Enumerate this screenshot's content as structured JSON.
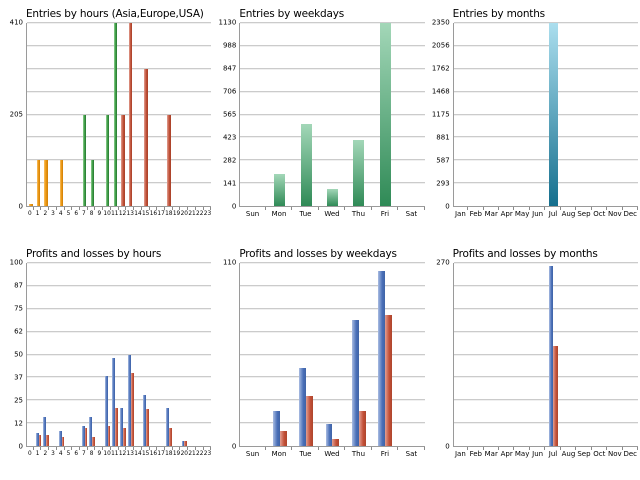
{
  "palette": {
    "asia_orange": "#ED9A14",
    "europe_green": "#3A9A44",
    "usa_red": "#C05138",
    "weekday_green": "#2F8A56",
    "month_teal": "#156F8E",
    "profit_blue": "#4A70B8",
    "loss_red": "#C35038"
  },
  "chart_data": [
    {
      "type": "bar",
      "title": "Entries by hours (Asia,Europe,USA)",
      "categories": [
        "0",
        "1",
        "2",
        "3",
        "4",
        "5",
        "6",
        "7",
        "8",
        "9",
        "10",
        "11",
        "12",
        "13",
        "14",
        "15",
        "16",
        "17",
        "18",
        "19",
        "20",
        "21",
        "22",
        "23"
      ],
      "values": [
        5,
        102,
        102,
        0,
        102,
        0,
        0,
        205,
        102,
        0,
        205,
        410,
        205,
        410,
        0,
        307,
        0,
        0,
        205,
        0,
        0,
        0,
        0,
        0
      ],
      "bar_colors": [
        "orange",
        "orange",
        "orange",
        "orange",
        "orange",
        "orange",
        "orange",
        "green",
        "green",
        "green",
        "green",
        "green",
        "red",
        "red",
        "red",
        "red",
        "red",
        "red",
        "red",
        "red",
        "red",
        "red",
        "red",
        "red"
      ],
      "ymax": 410,
      "ytick_labels": [
        "0",
        "",
        "",
        "",
        "205",
        "",
        "",
        "",
        "410"
      ],
      "grid": true,
      "legend": "none"
    },
    {
      "type": "bar",
      "title": "Entries by weekdays",
      "categories": [
        "Sun",
        "Mon",
        "Tue",
        "Wed",
        "Thu",
        "Fri",
        "Sat"
      ],
      "values": [
        0,
        200,
        505,
        105,
        410,
        1130,
        0
      ],
      "bar_colors": [
        "wgreen",
        "wgreen",
        "wgreen",
        "wgreen",
        "wgreen",
        "wgreen",
        "wgreen"
      ],
      "ymax": 1130,
      "ytick_labels": [
        "0",
        "141",
        "282",
        "423",
        "565",
        "706",
        "847",
        "988",
        "1130"
      ],
      "grid": true,
      "legend": "none"
    },
    {
      "type": "bar",
      "title": "Entries by months",
      "categories": [
        "Jan",
        "Feb",
        "Mar",
        "Apr",
        "May",
        "Jun",
        "Jul",
        "Aug",
        "Sep",
        "Oct",
        "Nov",
        "Dec"
      ],
      "values": [
        0,
        0,
        0,
        0,
        0,
        0,
        2350,
        0,
        0,
        0,
        0,
        0
      ],
      "bar_colors": [
        "teal",
        "teal",
        "teal",
        "teal",
        "teal",
        "teal",
        "teal",
        "teal",
        "teal",
        "teal",
        "teal",
        "teal"
      ],
      "ymax": 2350,
      "ytick_labels": [
        "0",
        "293",
        "587",
        "881",
        "1175",
        "1468",
        "1762",
        "2056",
        "2350"
      ],
      "grid": true,
      "legend": "none"
    },
    {
      "type": "grouped_bar",
      "title": "Profits and losses by hours",
      "categories": [
        "0",
        "1",
        "2",
        "3",
        "4",
        "5",
        "6",
        "7",
        "8",
        "9",
        "10",
        "11",
        "12",
        "13",
        "14",
        "15",
        "16",
        "17",
        "18",
        "19",
        "20",
        "21",
        "22",
        "23"
      ],
      "series": [
        {
          "name": "profits",
          "color": "blue",
          "values": [
            0,
            7,
            16,
            0,
            8,
            0,
            0,
            11,
            16,
            0,
            38,
            48,
            21,
            50,
            0,
            28,
            0,
            0,
            21,
            0,
            3,
            0,
            0,
            0
          ]
        },
        {
          "name": "losses",
          "color": "lred",
          "values": [
            0,
            6,
            6,
            0,
            5,
            0,
            0,
            10,
            5,
            0,
            11,
            21,
            10,
            40,
            0,
            20,
            0,
            0,
            10,
            0,
            3,
            0,
            0,
            0
          ]
        }
      ],
      "ymax": 100,
      "ytick_labels": [
        "0",
        "12",
        "25",
        "37",
        "50",
        "62",
        "75",
        "87",
        "100"
      ],
      "grid": true,
      "legend": "none"
    },
    {
      "type": "grouped_bar",
      "title": "Profits and losses by weekdays",
      "categories": [
        "Sun",
        "Mon",
        "Tue",
        "Wed",
        "Thu",
        "Fri",
        "Sat"
      ],
      "series": [
        {
          "name": "profits",
          "color": "blue",
          "values": [
            0,
            21,
            47,
            13,
            76,
            105,
            0
          ]
        },
        {
          "name": "losses",
          "color": "lred",
          "values": [
            0,
            9,
            30,
            4,
            21,
            79,
            0
          ]
        }
      ],
      "ymax": 110,
      "ytick_labels": [
        "0",
        "",
        "",
        "",
        "",
        "",
        "",
        "",
        "110"
      ],
      "grid": true,
      "legend": "none"
    },
    {
      "type": "grouped_bar",
      "title": "Profits and losses by months",
      "categories": [
        "Jan",
        "Feb",
        "Mar",
        "Apr",
        "May",
        "Jun",
        "Jul",
        "Aug",
        "Sep",
        "Oct",
        "Nov",
        "Dec"
      ],
      "series": [
        {
          "name": "profits",
          "color": "blue",
          "values": [
            0,
            0,
            0,
            0,
            0,
            0,
            265,
            0,
            0,
            0,
            0,
            0
          ]
        },
        {
          "name": "losses",
          "color": "lred",
          "values": [
            0,
            0,
            0,
            0,
            0,
            0,
            148,
            0,
            0,
            0,
            0,
            0
          ]
        }
      ],
      "ymax": 270,
      "ytick_labels": [
        "0",
        "",
        "",
        "",
        "",
        "",
        "",
        "",
        "270"
      ],
      "grid": true,
      "legend": "none"
    }
  ]
}
